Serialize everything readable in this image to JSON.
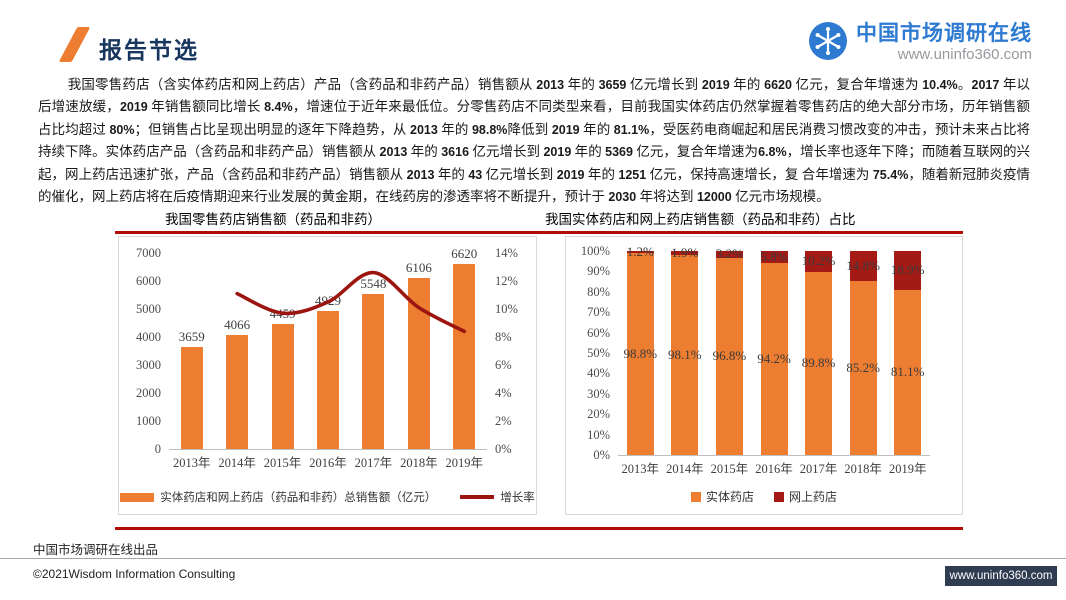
{
  "colors": {
    "orange": "#ED7D31",
    "dark-red": "#A41A15",
    "line-red": "#9C1511",
    "rule-red": "#B00C0C",
    "navy": "#17365D",
    "blue": "#2E7AD1",
    "badge-navy": "#2F3C51"
  },
  "header": {
    "title": "报告节选",
    "logo_name": "中国市场调研在线",
    "logo_url": "www.uninfo360.com"
  },
  "paragraph": [
    {
      "t": "我国零售药店（含实体药店和网上药店）产品（含药品和非药产品）销售额从 ",
      "b": false
    },
    {
      "t": "2013",
      "b": true
    },
    {
      "t": " 年的 ",
      "b": false
    },
    {
      "t": "3659",
      "b": true
    },
    {
      "t": " 亿元增长到 ",
      "b": false
    },
    {
      "t": "2019",
      "b": true
    },
    {
      "t": " 年的 ",
      "b": false
    },
    {
      "t": "6620",
      "b": true
    },
    {
      "t": " 亿元，复合年增速为 ",
      "b": false
    },
    {
      "t": "10.4%",
      "b": true
    },
    {
      "t": "。",
      "b": false
    },
    {
      "t": "2017",
      "b": true
    },
    {
      "t": " 年以后增速放缓，",
      "b": false
    },
    {
      "t": "2019",
      "b": true
    },
    {
      "t": " 年销售额同比增长 ",
      "b": false
    },
    {
      "t": "8.4%",
      "b": true
    },
    {
      "t": "，增速位于近年来最低位。分零售药店不同类型来看，目前我国实体药店仍然掌握着零售药店的绝大部分市场，历年销售额占比均超过 ",
      "b": false
    },
    {
      "t": "80%",
      "b": true
    },
    {
      "t": "；但销售占比呈现出明显的逐年下降趋势，从 ",
      "b": false
    },
    {
      "t": "2013",
      "b": true
    },
    {
      "t": " 年的 ",
      "b": false
    },
    {
      "t": "98.8%",
      "b": true
    },
    {
      "t": "降低到 ",
      "b": false
    },
    {
      "t": "2019",
      "b": true
    },
    {
      "t": " 年的 ",
      "b": false
    },
    {
      "t": "81.1%",
      "b": true
    },
    {
      "t": "，受医药电商崛起和居民消费习惯改变的冲击，预计未来占比将持续下降。实体药店产品（含药品和非药产品）销售额从 ",
      "b": false
    },
    {
      "t": "2013",
      "b": true
    },
    {
      "t": " 年的 ",
      "b": false
    },
    {
      "t": "3616",
      "b": true
    },
    {
      "t": " 亿元增长到 ",
      "b": false
    },
    {
      "t": "2019",
      "b": true
    },
    {
      "t": " 年的 ",
      "b": false
    },
    {
      "t": "5369",
      "b": true
    },
    {
      "t": " 亿元，复合年增速为",
      "b": false
    },
    {
      "t": "6.8%",
      "b": true
    },
    {
      "t": "，增长率也逐年下降；而随着互联网的兴起，网上药店迅速扩张，产品（含药品和非药产品）销售额从 ",
      "b": false
    },
    {
      "t": "2013",
      "b": true
    },
    {
      "t": " 年的 ",
      "b": false
    },
    {
      "t": "43",
      "b": true
    },
    {
      "t": " 亿元增长到 ",
      "b": false
    },
    {
      "t": "2019",
      "b": true
    },
    {
      "t": " 年的 ",
      "b": false
    },
    {
      "t": "1251",
      "b": true
    },
    {
      "t": " 亿元，保持高速增长，复 合年增速为 ",
      "b": false
    },
    {
      "t": "75.4%",
      "b": true
    },
    {
      "t": "，随着新冠肺炎疫情的催化，网上药店将在后疫情期迎来行业发展的黄金期，在线药房的渗透率将不断提升，预计于 ",
      "b": false
    },
    {
      "t": "2030",
      "b": true
    },
    {
      "t": " 年将达到 ",
      "b": false
    },
    {
      "t": "12000",
      "b": true
    },
    {
      "t": " 亿元市场规模。",
      "b": false
    }
  ],
  "chart_data": [
    {
      "type": "bar",
      "title": "我国零售药店销售额（药品和非药）",
      "categories": [
        "2013年",
        "2014年",
        "2015年",
        "2016年",
        "2017年",
        "2018年",
        "2019年"
      ],
      "series": [
        {
          "name": "实体药店和网上药店（药品和非药）总销售额（亿元）",
          "type": "bar",
          "axis": "left",
          "values": [
            3659,
            4066,
            4459,
            4929,
            5548,
            6106,
            6620
          ],
          "color": "#ED7D31"
        },
        {
          "name": "增长率",
          "type": "line",
          "axis": "right",
          "values": [
            null,
            11.1,
            9.7,
            10.5,
            12.6,
            10.1,
            8.4
          ],
          "color": "#9C1511"
        }
      ],
      "value_axis": {
        "min": 0,
        "max": 7000,
        "ticks": [
          "0",
          "1000",
          "2000",
          "3000",
          "4000",
          "5000",
          "6000",
          "7000"
        ]
      },
      "pct_axis": {
        "min": 0,
        "max": 14,
        "ticks": [
          "0%",
          "2%",
          "4%",
          "6%",
          "8%",
          "10%",
          "12%",
          "14%"
        ]
      },
      "grid": false,
      "legend_position": "bottom"
    },
    {
      "type": "bar",
      "subtype": "stacked-percent",
      "title": "我国实体药店和网上药店销售额（药品和非药）占比",
      "categories": [
        "2013年",
        "2014年",
        "2015年",
        "2016年",
        "2017年",
        "2018年",
        "2019年"
      ],
      "series": [
        {
          "name": "实体药店",
          "values": [
            98.8,
            98.1,
            96.8,
            94.2,
            89.8,
            85.2,
            81.1
          ],
          "color": "#ED7D31"
        },
        {
          "name": "网上药店",
          "values": [
            1.2,
            1.9,
            3.2,
            5.8,
            10.2,
            14.8,
            18.9
          ],
          "color": "#A41A15"
        }
      ],
      "pct_axis": {
        "min": 0,
        "max": 100,
        "ticks": [
          "0%",
          "10%",
          "20%",
          "30%",
          "40%",
          "50%",
          "60%",
          "70%",
          "80%",
          "90%",
          "100%"
        ]
      },
      "grid": false,
      "legend_position": "bottom"
    }
  ],
  "footer": {
    "produced_by": "中国市场调研在线出品",
    "copyright": "©2021Wisdom Information Consulting",
    "site_badge": "www.uninfo360.com"
  }
}
